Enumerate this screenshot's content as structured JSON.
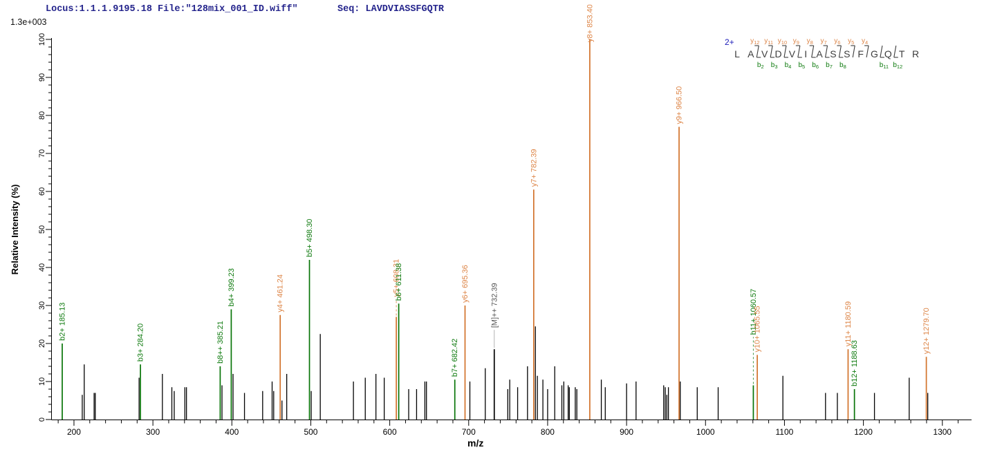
{
  "header": {
    "locus_file": "Locus:1.1.1.9195.18 File:\"128mix_001_ID.wiff\"",
    "seq": "Seq: LAVDVIASSFGQTR"
  },
  "colors": {
    "header_text": "#24248c",
    "axis": "#000000",
    "peak_black": "#000000",
    "b_line": "#077407",
    "b_text": "#0e7a0e",
    "y_line": "#d2722a",
    "y_text": "#dd8547",
    "m_line": "#000000",
    "m_text": "#555555",
    "leader_gray": "#999999",
    "charge_blue": "#1a1ab8",
    "residue": "#3c3c3c"
  },
  "chart_data": {
    "type": "bar",
    "title": "",
    "xlabel": "m/z",
    "ylabel": "Relative  Intensity (%)",
    "max_intensity_label": "1.3e+003",
    "xlim": [
      172,
      1337
    ],
    "ylim": [
      0,
      100
    ],
    "x_major_tick_start": 200,
    "x_major_tick_end": 1300,
    "x_major_step": 100,
    "x_minor_step": 20,
    "y_major_step": 10,
    "y_minor_step": 2,
    "grid": false,
    "annotation": {
      "charge": "2+",
      "sequence": "LAVDVIASSFGQTR",
      "residues": [
        "L",
        "A",
        "V",
        "D",
        "V",
        "I",
        "A",
        "S",
        "S",
        "F",
        "G",
        "Q",
        "T",
        "R"
      ],
      "cleavages": [
        {
          "after": 2,
          "y": "y12",
          "b": "b2"
        },
        {
          "after": 3,
          "y": "y11",
          "b": "b3"
        },
        {
          "after": 4,
          "y": "y10",
          "b": "b4"
        },
        {
          "after": 5,
          "y": "y9",
          "b": "b5"
        },
        {
          "after": 6,
          "y": "y8",
          "b": "b6"
        },
        {
          "after": 7,
          "y": "y7",
          "b": "b7"
        },
        {
          "after": 8,
          "y": "y6",
          "b": "b8"
        },
        {
          "after": 9,
          "y": "y5",
          "b": null
        },
        {
          "after": 10,
          "y": "y4",
          "b": null
        },
        {
          "after": 11,
          "y": null,
          "b": "b11"
        },
        {
          "after": 12,
          "y": null,
          "b": "b12"
        }
      ]
    },
    "peaks": [
      {
        "mz": 185.13,
        "i": 20,
        "t": "b",
        "label": "b2+ 185.13"
      },
      {
        "mz": 210.5,
        "i": 6.5
      },
      {
        "mz": 213,
        "i": 14.5
      },
      {
        "mz": 225.5,
        "i": 7
      },
      {
        "mz": 227,
        "i": 7
      },
      {
        "mz": 282.5,
        "i": 11
      },
      {
        "mz": 284.2,
        "i": 14.5,
        "t": "b",
        "label": "b3+ 284.20"
      },
      {
        "mz": 312,
        "i": 12
      },
      {
        "mz": 324,
        "i": 8.5
      },
      {
        "mz": 327,
        "i": 7.5
      },
      {
        "mz": 340.5,
        "i": 8.5
      },
      {
        "mz": 342.5,
        "i": 8.5
      },
      {
        "mz": 385.21,
        "i": 14,
        "t": "b",
        "label": "b8++ 385.21"
      },
      {
        "mz": 387.5,
        "i": 9
      },
      {
        "mz": 399.23,
        "i": 29,
        "t": "b",
        "label": "b4+ 399.23"
      },
      {
        "mz": 401.5,
        "i": 12
      },
      {
        "mz": 416,
        "i": 7
      },
      {
        "mz": 439,
        "i": 7.5
      },
      {
        "mz": 451,
        "i": 10
      },
      {
        "mz": 453,
        "i": 7.5
      },
      {
        "mz": 461.24,
        "i": 27.5,
        "t": "y",
        "label": "y4+ 461.24"
      },
      {
        "mz": 463.5,
        "i": 5
      },
      {
        "mz": 469.5,
        "i": 12
      },
      {
        "mz": 498.3,
        "i": 42,
        "t": "b",
        "label": "b5+ 498.30"
      },
      {
        "mz": 500.5,
        "i": 7.5
      },
      {
        "mz": 512,
        "i": 22.5
      },
      {
        "mz": 554,
        "i": 10
      },
      {
        "mz": 569,
        "i": 11
      },
      {
        "mz": 582.5,
        "i": 12
      },
      {
        "mz": 593,
        "i": 11
      },
      {
        "mz": 608.31,
        "i": 27,
        "t": "y",
        "label": "y5+ 608.31",
        "offset": 24,
        "leader": "dashed"
      },
      {
        "mz": 611.38,
        "i": 30.5,
        "t": "b",
        "label": "b6+ 611.38"
      },
      {
        "mz": 624,
        "i": 8
      },
      {
        "mz": 634,
        "i": 8
      },
      {
        "mz": 644.5,
        "i": 10
      },
      {
        "mz": 646.5,
        "i": 10
      },
      {
        "mz": 682.42,
        "i": 10.5,
        "t": "b",
        "label": "b7+ 682.42"
      },
      {
        "mz": 695.36,
        "i": 30,
        "t": "y",
        "label": "y6+ 695.36"
      },
      {
        "mz": 701.5,
        "i": 10
      },
      {
        "mz": 721,
        "i": 13.5
      },
      {
        "mz": 732.39,
        "i": 18.5,
        "t": "M",
        "label": "[M]++ 732.39",
        "offset": 26,
        "leader": "solid"
      },
      {
        "mz": 749.5,
        "i": 8
      },
      {
        "mz": 752,
        "i": 10.5
      },
      {
        "mz": 762,
        "i": 8.5
      },
      {
        "mz": 774.5,
        "i": 14
      },
      {
        "mz": 782.39,
        "i": 60.5,
        "t": "y",
        "label": "y7+ 782.39"
      },
      {
        "mz": 784.5,
        "i": 24.5
      },
      {
        "mz": 787,
        "i": 11.5
      },
      {
        "mz": 794,
        "i": 10.5
      },
      {
        "mz": 800,
        "i": 8
      },
      {
        "mz": 809,
        "i": 14
      },
      {
        "mz": 818,
        "i": 9
      },
      {
        "mz": 820.5,
        "i": 10
      },
      {
        "mz": 826,
        "i": 9
      },
      {
        "mz": 827.5,
        "i": 8.5
      },
      {
        "mz": 835,
        "i": 8.5
      },
      {
        "mz": 837,
        "i": 8
      },
      {
        "mz": 853.4,
        "i": 100,
        "t": "y",
        "label": "y8+ 853.40"
      },
      {
        "mz": 868,
        "i": 10.5
      },
      {
        "mz": 873,
        "i": 8.5
      },
      {
        "mz": 900,
        "i": 9.5
      },
      {
        "mz": 912,
        "i": 10
      },
      {
        "mz": 947,
        "i": 9
      },
      {
        "mz": 949,
        "i": 8.5
      },
      {
        "mz": 951,
        "i": 6.5
      },
      {
        "mz": 953,
        "i": 8.5
      },
      {
        "mz": 966.5,
        "i": 77,
        "t": "y",
        "label": "y9+ 966.50"
      },
      {
        "mz": 968,
        "i": 10
      },
      {
        "mz": 989.5,
        "i": 8.5
      },
      {
        "mz": 1016,
        "i": 8.5
      },
      {
        "mz": 1060.57,
        "i": 9,
        "t": "b",
        "label": "b11+ 1060.57",
        "offset": 68,
        "leader": "dashed"
      },
      {
        "mz": 1065.55,
        "i": 17,
        "t": "y",
        "label": "y10+ 1065.55"
      },
      {
        "mz": 1098,
        "i": 11.5
      },
      {
        "mz": 1152,
        "i": 7
      },
      {
        "mz": 1167,
        "i": 7
      },
      {
        "mz": 1180.59,
        "i": 18.5,
        "t": "y",
        "label": "y11+ 1180.59"
      },
      {
        "mz": 1188.63,
        "i": 8,
        "t": "b",
        "label": "b12+ 1188.63"
      },
      {
        "mz": 1214,
        "i": 7
      },
      {
        "mz": 1258,
        "i": 11
      },
      {
        "mz": 1279.7,
        "i": 16.5,
        "t": "y",
        "label": "y12+ 1279.70"
      },
      {
        "mz": 1281.5,
        "i": 7
      }
    ]
  }
}
